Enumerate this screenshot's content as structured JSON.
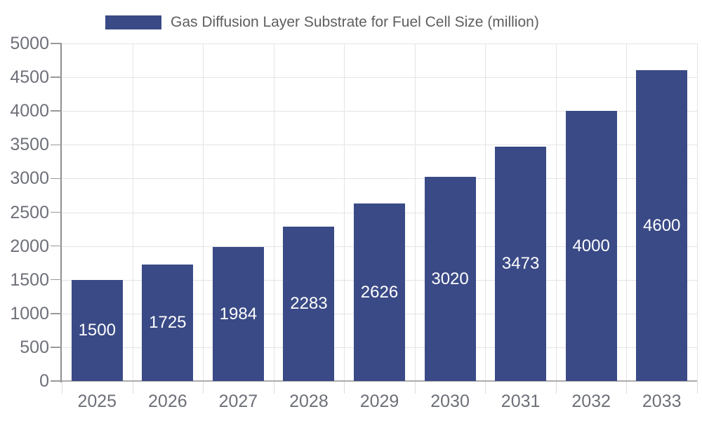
{
  "legend": {
    "label": "Gas Diffusion Layer Substrate for Fuel Cell Size (million)"
  },
  "chart_data": {
    "type": "bar",
    "title": "Gas Diffusion Layer Substrate for Fuel Cell Size (million)",
    "series_name": "Gas Diffusion Layer Substrate for Fuel Cell Size (million)",
    "categories": [
      "2025",
      "2026",
      "2027",
      "2028",
      "2029",
      "2030",
      "2031",
      "2032",
      "2033"
    ],
    "values": [
      1500,
      1725,
      1984,
      2283,
      2626,
      3020,
      3473,
      4000,
      4600
    ],
    "xlabel": "",
    "ylabel": "",
    "ylim": [
      0,
      5000
    ],
    "ytick_interval": 500,
    "yticks": [
      "0",
      "500",
      "1000",
      "1500",
      "2000",
      "2500",
      "3000",
      "3500",
      "4000",
      "4500",
      "5000"
    ],
    "grid": true,
    "legend_position": "top",
    "colors": {
      "bar": "#3a4a86",
      "bar_label": "#ffffff",
      "axis_label": "#6e7079",
      "legend_text": "#5e5e5e",
      "gridline": "#e4e4e4",
      "axis_line": "#999999"
    }
  }
}
